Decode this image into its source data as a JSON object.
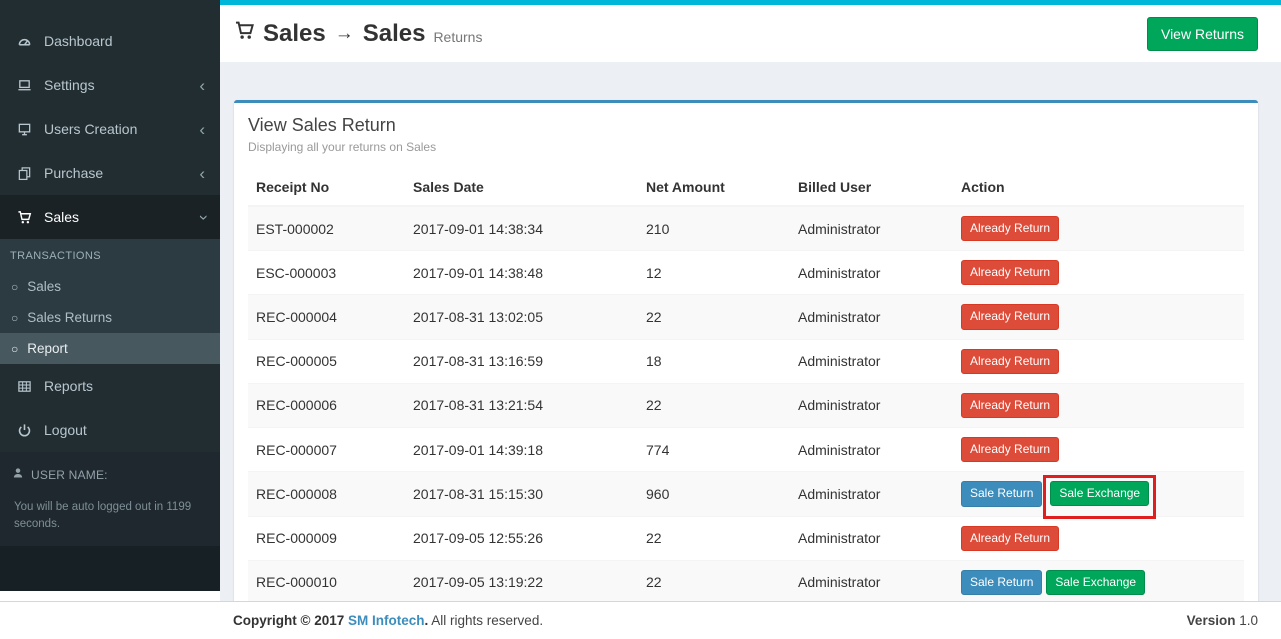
{
  "colors": {
    "accent": "#3c8dbc",
    "green": "#00a65a",
    "red": "#dd4b39",
    "strip": "#00b6d9",
    "sidebar": "#222d32",
    "submenu": "#2c3b41",
    "content": "#ecf0f5",
    "ann": "#e01e1e"
  },
  "sidebar": {
    "items": [
      {
        "label": "Dashboard",
        "icon": "dashboard-icon"
      },
      {
        "label": "Settings",
        "icon": "laptop-icon"
      },
      {
        "label": "Users Creation",
        "icon": "desktop-icon"
      },
      {
        "label": "Purchase",
        "icon": "copy-icon"
      },
      {
        "label": "Sales",
        "icon": "cart-icon"
      }
    ],
    "section_header": "TRANSACTIONS",
    "sub_items": [
      {
        "label": "Sales"
      },
      {
        "label": "Sales Returns"
      },
      {
        "label": "Report"
      }
    ],
    "bottom_items": [
      {
        "label": "Reports",
        "icon": "table-icon"
      },
      {
        "label": "Logout",
        "icon": "power-icon"
      }
    ],
    "user_panel": {
      "label": "USER NAME:",
      "auto_logout_message": "You will be auto logged out in 1199 seconds."
    }
  },
  "header": {
    "breadcrumb_root": "Sales",
    "breadcrumb_page": "Sales",
    "breadcrumb_page_small": "Returns",
    "view_returns_button": "View Returns"
  },
  "card": {
    "title": "View Sales Return",
    "subtitle": "Displaying all your returns on Sales"
  },
  "table": {
    "columns": [
      "Receipt No",
      "Sales Date",
      "Net Amount",
      "Billed User",
      "Action"
    ],
    "rows": [
      {
        "receipt": "EST-000002",
        "date": "2017-09-01 14:38:34",
        "amount": "210",
        "user": "Administrator",
        "actions": [
          {
            "type": "already_return"
          }
        ]
      },
      {
        "receipt": "ESC-000003",
        "date": "2017-09-01 14:38:48",
        "amount": "12",
        "user": "Administrator",
        "actions": [
          {
            "type": "already_return"
          }
        ]
      },
      {
        "receipt": "REC-000004",
        "date": "2017-08-31 13:02:05",
        "amount": "22",
        "user": "Administrator",
        "actions": [
          {
            "type": "already_return"
          }
        ]
      },
      {
        "receipt": "REC-000005",
        "date": "2017-08-31 13:16:59",
        "amount": "18",
        "user": "Administrator",
        "actions": [
          {
            "type": "already_return"
          }
        ]
      },
      {
        "receipt": "REC-000006",
        "date": "2017-08-31 13:21:54",
        "amount": "22",
        "user": "Administrator",
        "actions": [
          {
            "type": "already_return"
          }
        ]
      },
      {
        "receipt": "REC-000007",
        "date": "2017-09-01 14:39:18",
        "amount": "774",
        "user": "Administrator",
        "actions": [
          {
            "type": "already_return"
          }
        ]
      },
      {
        "receipt": "REC-000008",
        "date": "2017-08-31 15:15:30",
        "amount": "960",
        "user": "Administrator",
        "actions": [
          {
            "type": "sale_return"
          },
          {
            "type": "sale_exchange",
            "annotated": true
          }
        ]
      },
      {
        "receipt": "REC-000009",
        "date": "2017-09-05 12:55:26",
        "amount": "22",
        "user": "Administrator",
        "actions": [
          {
            "type": "already_return"
          }
        ]
      },
      {
        "receipt": "REC-000010",
        "date": "2017-09-05 13:19:22",
        "amount": "22",
        "user": "Administrator",
        "actions": [
          {
            "type": "sale_return"
          },
          {
            "type": "sale_exchange"
          }
        ]
      }
    ]
  },
  "buttons": {
    "already_return": "Already Return",
    "sale_return": "Sale Return",
    "sale_exchange": "Sale Exchange"
  },
  "footer": {
    "copyright_prefix": "Copyright © 2017",
    "company": "SM Infotech",
    "copyright_period": ".",
    "rights_text": "All rights reserved.",
    "version_label": "Version",
    "version_value": "1.0"
  }
}
